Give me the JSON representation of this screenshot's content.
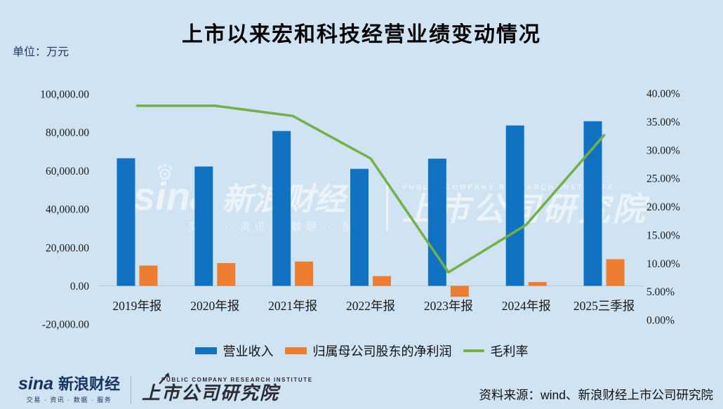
{
  "title": "上市以来宏和科技经营业绩变动情况",
  "unit_label": "单位：万元",
  "chart_data": {
    "type": "bar",
    "subtype": "combo-bar-line-dual-axis",
    "title": "上市以来宏和科技经营业绩变动情况",
    "unit": "万元",
    "categories": [
      "2019年报",
      "2020年报",
      "2021年报",
      "2022年报",
      "2023年报",
      "2024年报",
      "2025三季报"
    ],
    "series": [
      {
        "name": "营业收入",
        "type": "bar",
        "axis": "left",
        "color": "#1272c2",
        "values": [
          66500,
          62200,
          80700,
          61000,
          66300,
          83600,
          85800
        ]
      },
      {
        "name": "归属母公司股东的净利润",
        "type": "bar",
        "axis": "left",
        "color": "#ed7d31",
        "values": [
          10600,
          11900,
          12700,
          5100,
          -5700,
          2000,
          13900
        ]
      },
      {
        "name": "毛利率",
        "type": "line",
        "axis": "right",
        "color": "#74b043",
        "unit": "%",
        "values": [
          37.8,
          37.8,
          36.0,
          28.5,
          8.4,
          16.8,
          32.6
        ]
      }
    ],
    "left_axis": {
      "min": -20000,
      "max": 100000,
      "step": 20000,
      "tick_format": "#,##0.00"
    },
    "right_axis": {
      "min": 0,
      "max": 40,
      "step": 5,
      "tick_format": "0.00%"
    },
    "legend_position": "bottom",
    "grid": false
  },
  "watermark": {
    "sina_wordmark": "sina",
    "brand": "新浪财经",
    "tagline": "交易 · 资讯 · 数据 · 服务",
    "institute_en": "PUBLIC COMPANY RESEARCH INSTITUTE",
    "institute": "上市公司研究院"
  },
  "footer": {
    "sina_wordmark": "sina",
    "brand": "新浪财经",
    "tagline": "交易 · 资讯 · 数据 · 服务",
    "institute_en": "PUBLIC COMPANY RESEARCH INSTITUTE",
    "institute": "上市公司研究院",
    "source": "资料来源：wind、新浪财经上市公司研究院"
  },
  "colors": {
    "background": "#cfe3f2",
    "revenue_bar": "#1272c2",
    "profit_bar": "#ed7d31",
    "margin_line": "#74b043",
    "axis_line": "#b7c7d4",
    "text": "#1a1a1a"
  }
}
